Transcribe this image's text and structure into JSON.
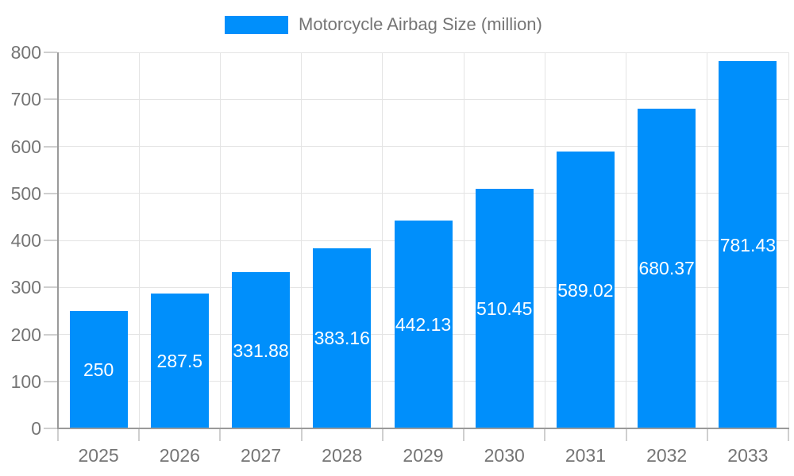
{
  "legend": {
    "label": "Motorcycle Airbag Size (million)"
  },
  "colors": {
    "bar": "#008ffb",
    "bar_label": "#ffffff",
    "grid": "#e4e4e4",
    "axis": "#9a9a9a",
    "tick": "#cfcfcf",
    "text": "#757575",
    "background": "#ffffff"
  },
  "chart_data": {
    "type": "bar",
    "title": "Motorcycle Airbag Size (million)",
    "categories": [
      "2025",
      "2026",
      "2027",
      "2028",
      "2029",
      "2030",
      "2031",
      "2032",
      "2033"
    ],
    "series": [
      {
        "name": "Motorcycle Airbag Size (million)",
        "values": [
          250,
          287.5,
          331.88,
          383.16,
          442.13,
          510.45,
          589.02,
          680.37,
          781.43
        ],
        "labels": [
          "250",
          "287.5",
          "331.88",
          "383.16",
          "442.13",
          "510.45",
          "589.02",
          "680.37",
          "781.43"
        ],
        "color": "#008ffb"
      }
    ],
    "xlabel": "",
    "ylabel": "",
    "ylim": [
      0,
      800
    ],
    "ytick_interval": 100,
    "yticks": [
      "0",
      "100",
      "200",
      "300",
      "400",
      "500",
      "600",
      "700",
      "800"
    ],
    "grid": true,
    "legend_position": "top",
    "bar_label_position": "center-inside"
  }
}
